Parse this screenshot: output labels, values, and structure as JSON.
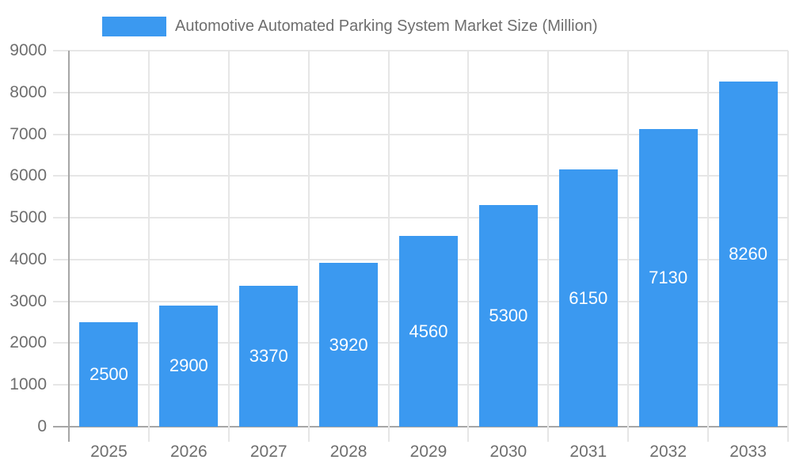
{
  "chart_data": {
    "type": "bar",
    "title": "Automotive Automated Parking System Market Size (Million)",
    "categories": [
      "2025",
      "2026",
      "2027",
      "2028",
      "2029",
      "2030",
      "2031",
      "2032",
      "2033"
    ],
    "values": [
      2500,
      2900,
      3370,
      3920,
      4560,
      5300,
      6150,
      7130,
      8260
    ],
    "yticks": [
      0,
      1000,
      2000,
      3000,
      4000,
      5000,
      6000,
      7000,
      8000,
      9000
    ],
    "ylim": [
      0,
      9000
    ],
    "xlabel": "",
    "ylabel": "",
    "grid": true,
    "legend_position": "top",
    "colors": {
      "bar": "#3b99f0",
      "gridline": "#e6e6e6",
      "axis_line": "#a6a6a6",
      "tick_text": "#6e6e6e",
      "value_label_text": "#ffffff"
    }
  }
}
